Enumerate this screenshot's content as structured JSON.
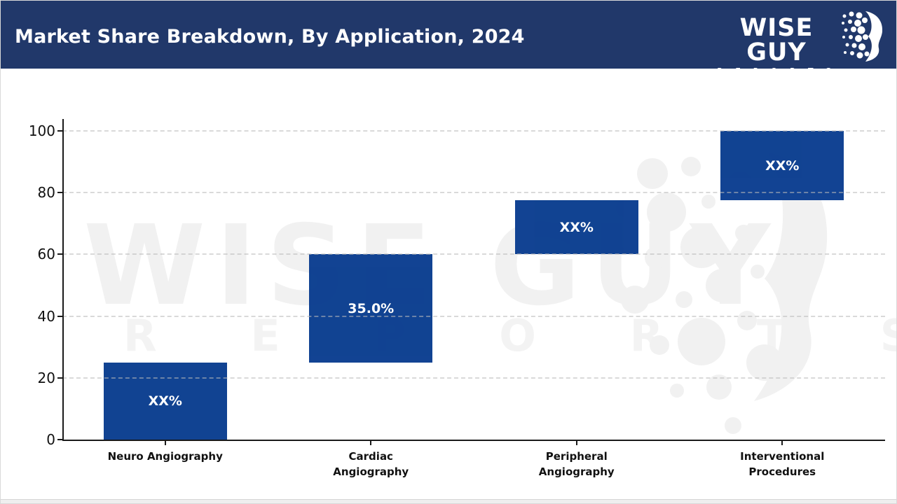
{
  "header": {
    "title": "Market Share Breakdown, By Application, 2024",
    "logo": {
      "wordmark": "WISE GUY",
      "subtext": "R E P O R T S"
    }
  },
  "watermark": {
    "wordmark": "WISE GUY",
    "subtext": "R E P O R T S"
  },
  "colors": {
    "header_bg": "#21386a",
    "bar": "#0a3d8f",
    "bar_label": "#ffffff",
    "grid": "#d8d8d8",
    "axis": "#1a1a1a",
    "watermark": "#f1f1f1",
    "page_bg": "#ffffff"
  },
  "chart_data": {
    "type": "bar",
    "subtype": "waterfall",
    "title": "Market Share Breakdown, By Application, 2024",
    "categories": [
      "Neuro Angiography",
      "Cardiac Angiography",
      "Peripheral Angiography",
      "Interventional Procedures"
    ],
    "category_label_lines": [
      [
        "Neuro Angiography"
      ],
      [
        "Cardiac",
        "Angiography"
      ],
      [
        "Peripheral",
        "Angiography"
      ],
      [
        "Interventional",
        "Procedures"
      ]
    ],
    "segments": [
      {
        "category": "Neuro Angiography",
        "start": 0,
        "end": 25,
        "label": "XX%"
      },
      {
        "category": "Cardiac Angiography",
        "start": 25,
        "end": 60,
        "label": "35.0%"
      },
      {
        "category": "Peripheral Angiography",
        "start": 60,
        "end": 77.5,
        "label": "XX%"
      },
      {
        "category": "Interventional Procedures",
        "start": 77.5,
        "end": 100,
        "label": "XX%"
      }
    ],
    "yticks": [
      0,
      20,
      40,
      60,
      80,
      100
    ],
    "ylim": [
      0,
      104
    ],
    "xlabel": "",
    "ylabel": "",
    "grid": "horizontal-dashed",
    "legend": "none"
  }
}
